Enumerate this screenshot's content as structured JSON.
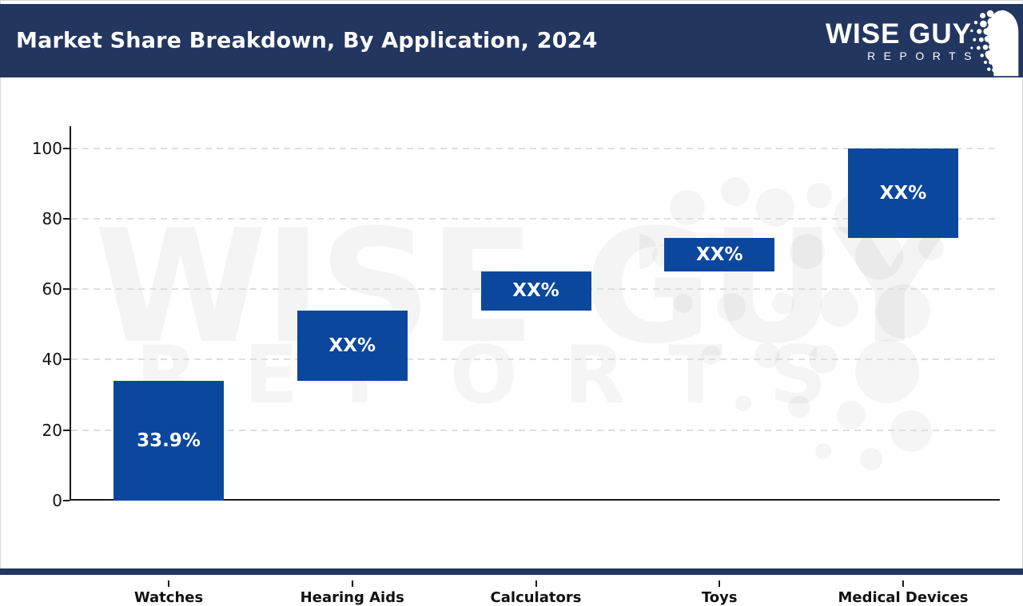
{
  "header": {
    "title": "Market Share Breakdown, By Application, 2024",
    "logo": {
      "line1": "WISE GUY",
      "line2": "REPORTS"
    }
  },
  "watermark": {
    "line1": "WISE GUY",
    "line2": "REPORTS"
  },
  "colors": {
    "header_bg": "#223660",
    "footer_bg": "#223660",
    "bar": "#0B479C",
    "bar_label": "#ffffff",
    "axis": "#1a1a1a",
    "gridline": "#dedede",
    "text": "#111111",
    "watermark": "#f2f2f2"
  },
  "chart_data": {
    "type": "bar",
    "subtype": "waterfall",
    "title": "Market Share Breakdown, By Application, 2024",
    "categories": [
      "Watches",
      "Hearing Aids",
      "Calculators",
      "Toys",
      "Medical Devices"
    ],
    "segments": [
      {
        "category": "Watches",
        "start": 0,
        "end": 33.9,
        "label": "33.9%"
      },
      {
        "category": "Hearing Aids",
        "start": 33.9,
        "end": 54,
        "label": "XX%"
      },
      {
        "category": "Calculators",
        "start": 54,
        "end": 65,
        "label": "XX%"
      },
      {
        "category": "Toys",
        "start": 65,
        "end": 74.5,
        "label": "XX%"
      },
      {
        "category": "Medical Devices",
        "start": 74.5,
        "end": 100,
        "label": "XX%"
      }
    ],
    "xlabel": "",
    "ylabel": "",
    "ylim": [
      0,
      100
    ],
    "yticks": [
      0,
      20,
      40,
      60,
      80,
      100
    ],
    "grid": "horizontal-dashed",
    "legend": "none"
  }
}
